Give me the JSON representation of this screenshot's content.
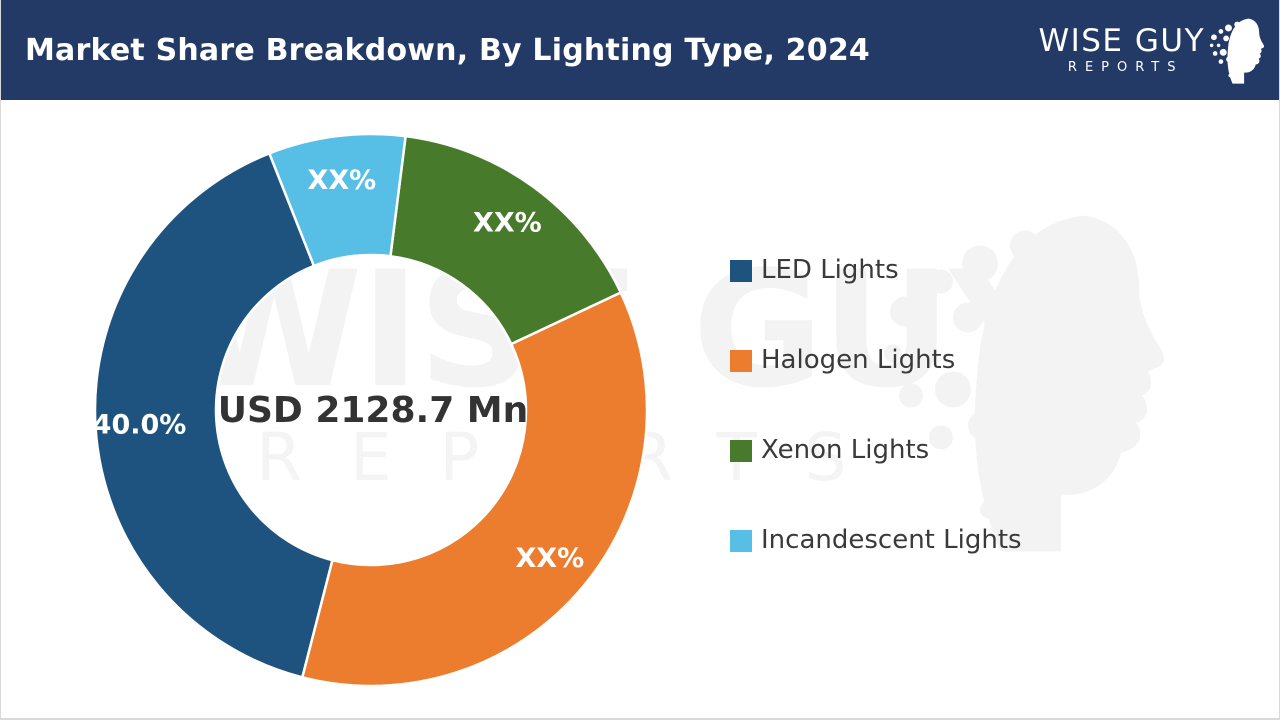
{
  "header": {
    "title": "Market Share Breakdown, By Lighting Type, 2024",
    "logo": {
      "line1": "WISE GUY",
      "line2": "REPORTS"
    }
  },
  "chart_data": {
    "type": "pie",
    "subtype": "donut",
    "title": "Market Share Breakdown, By Lighting Type, 2024",
    "center_label": "USD 2128.7 Mn",
    "inner_radius_ratio": 0.56,
    "start_angle_deg": -21.6,
    "direction": "clockwise-from-incandescent-boundary",
    "legend_position": "right",
    "segments": [
      {
        "name": "LED Lights",
        "color": "#1F537F",
        "value_pct": 40.0,
        "slice_label": "40.0%"
      },
      {
        "name": "Halogen Lights",
        "color": "#EC7D2E",
        "value_pct": 36.0,
        "slice_label": "XX%"
      },
      {
        "name": "Xenon Lights",
        "color": "#487A2B",
        "value_pct": 16.0,
        "slice_label": "XX%"
      },
      {
        "name": "Incandescent Lights",
        "color": "#57BEE6",
        "value_pct": 8.0,
        "slice_label": "XX%"
      }
    ]
  },
  "legend": {
    "items": [
      {
        "label": "LED Lights"
      },
      {
        "label": "Halogen Lights"
      },
      {
        "label": "Xenon Lights"
      },
      {
        "label": "Incandescent Lights"
      }
    ]
  },
  "watermark": {
    "line1": "WISE GUY",
    "line2": "REPORTS"
  }
}
